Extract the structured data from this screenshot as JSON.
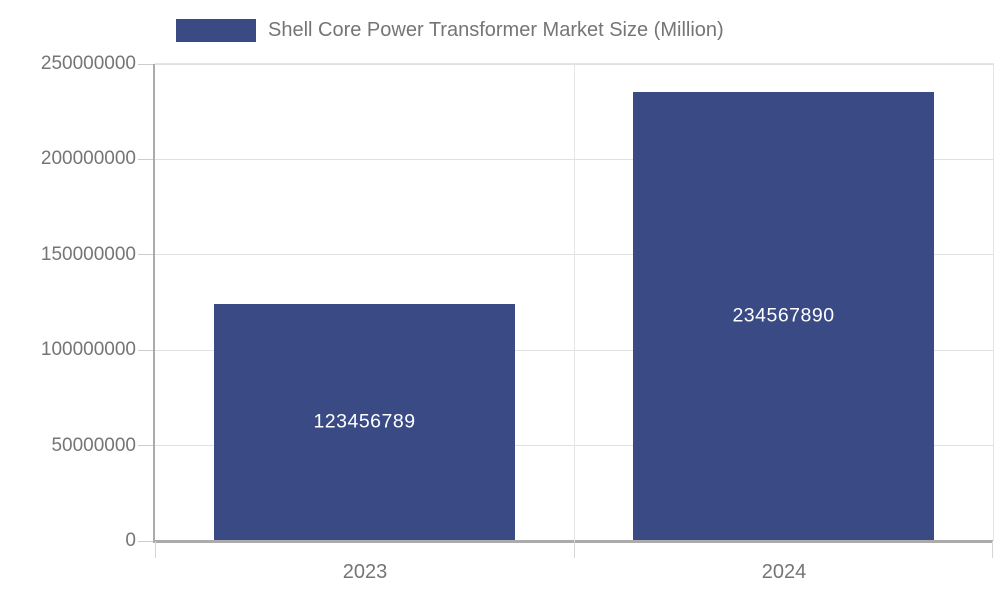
{
  "chart_data": {
    "type": "bar",
    "title": "Shell Core Power Transformer Market Size (Million)",
    "categories": [
      "2023",
      "2024"
    ],
    "series": [
      {
        "name": "Shell Core Power Transformer Market Size (Million)",
        "values": [
          123456789,
          234567890
        ]
      }
    ],
    "data_labels": [
      "123456789",
      "234567890"
    ],
    "xlabel": "",
    "ylabel": "",
    "ylim": [
      0,
      250000000
    ],
    "ytick_step": 50000000,
    "ytick_labels": [
      "0",
      "50000000",
      "100000000",
      "150000000",
      "200000000",
      "250000000"
    ],
    "grid": true,
    "legend_position": "top-left",
    "colors": {
      "bar": "#3a4a85",
      "axis_text": "#757575",
      "gridline": "#e0e0e0",
      "axis_line": "#ababab",
      "bar_label_text": "#ffffff",
      "background": "#ffffff"
    }
  }
}
